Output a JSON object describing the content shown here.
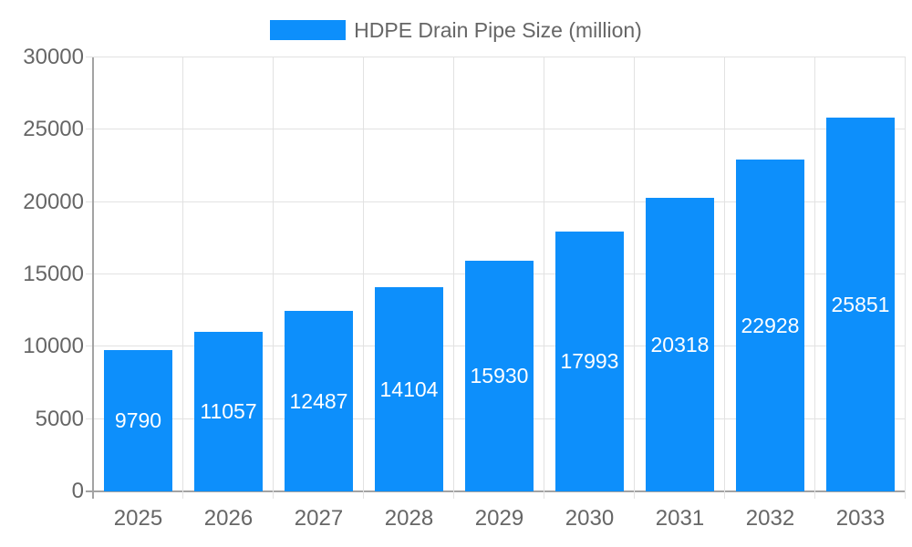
{
  "legend": {
    "label": "HDPE Drain Pipe Size (million)"
  },
  "chart_data": {
    "type": "bar",
    "title": "HDPE Drain Pipe Size (million)",
    "categories": [
      "2025",
      "2026",
      "2027",
      "2028",
      "2029",
      "2030",
      "2031",
      "2032",
      "2033"
    ],
    "values": [
      9790,
      11057,
      12487,
      14104,
      15930,
      17993,
      20318,
      22928,
      25851
    ],
    "series": [
      {
        "name": "HDPE Drain Pipe Size (million)",
        "values": [
          9790,
          11057,
          12487,
          14104,
          15930,
          17993,
          20318,
          22928,
          25851
        ]
      }
    ],
    "xlabel": "",
    "ylabel": "",
    "ylim": [
      0,
      30000
    ],
    "yticks": [
      0,
      5000,
      10000,
      15000,
      20000,
      25000,
      30000
    ],
    "grid": true,
    "legend_position": "top-center",
    "value_label_position": "inside-center",
    "colors": {
      "bar": "#0D8FFB",
      "value_label": "#FFFFFF",
      "axis_text": "#666666",
      "axis_line": "#A3A3A3",
      "gridline": "#E2E2E2",
      "background": "#FFFFFF"
    }
  }
}
